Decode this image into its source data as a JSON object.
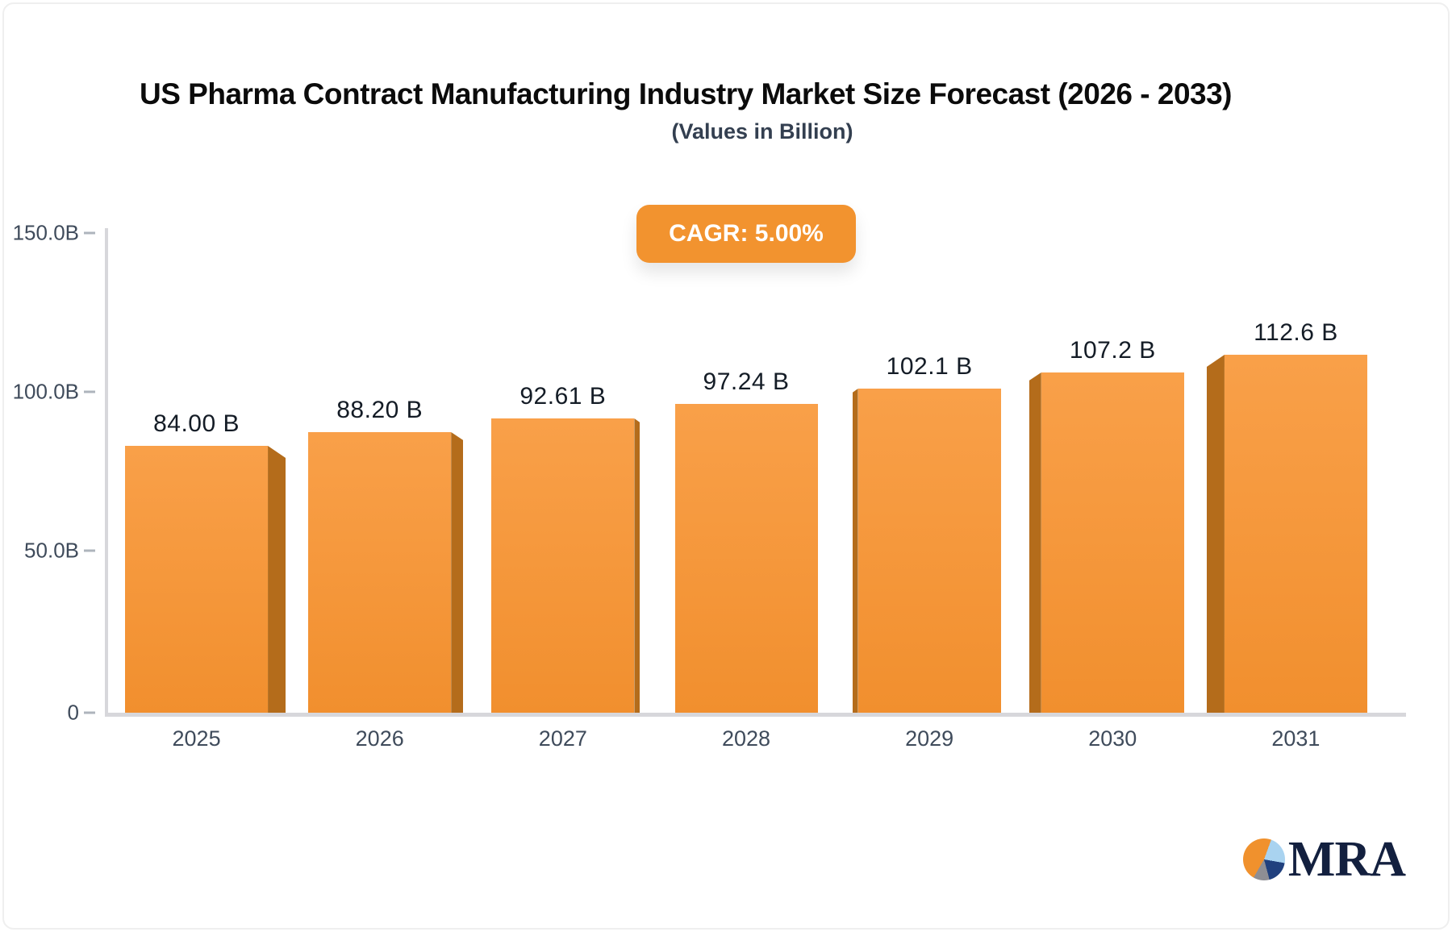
{
  "header": {
    "title": "US Pharma Contract Manufacturing Industry Market Size Forecast (2026 - 2033)",
    "subtitle": "(Values in Billion)",
    "badge": "CAGR: 5.00%"
  },
  "chart_data": {
    "type": "bar",
    "title": "US Pharma Contract Manufacturing Industry Market Size Forecast (2026 - 2033)",
    "subtitle": "(Values in Billion)",
    "annotation": "CAGR: 5.00%",
    "categories": [
      "2025",
      "2026",
      "2027",
      "2028",
      "2029",
      "2030",
      "2031"
    ],
    "values": [
      84.0,
      88.2,
      92.61,
      97.24,
      102.1,
      107.2,
      112.6
    ],
    "value_labels": [
      "84.00 B",
      "88.20 B",
      "92.61 B",
      "97.24 B",
      "102.1 B",
      "107.2 B",
      "112.6 B"
    ],
    "xlabel": "",
    "ylabel": "",
    "ylim": [
      0,
      150
    ],
    "grid": false,
    "legend": "none",
    "y_axis": {
      "ticks": [
        {
          "label": "150.0B",
          "value": 150
        },
        {
          "label": "100.0B",
          "value": 100
        },
        {
          "label": "50.0B",
          "value": 50
        },
        {
          "label": "0",
          "value": 0
        }
      ]
    },
    "style": {
      "bar_effect": "3d-extruded-toward-outside",
      "bar_front_top": "#F9A049",
      "bar_front_bottom": "#F18F2E",
      "bar_side": "#B46C1B",
      "badge_bg": "#F2932F",
      "axis_line": "#D7D7DB",
      "tick_mark": "#AEB4BC",
      "tick_text": "#3F4B5B",
      "value_text": "#141C26"
    }
  },
  "logo": {
    "text": "MRA",
    "pie_colors": {
      "orange": "#F0912D",
      "light_blue": "#A9D3F0",
      "navy": "#20407E",
      "gray": "#8E8E94"
    }
  }
}
